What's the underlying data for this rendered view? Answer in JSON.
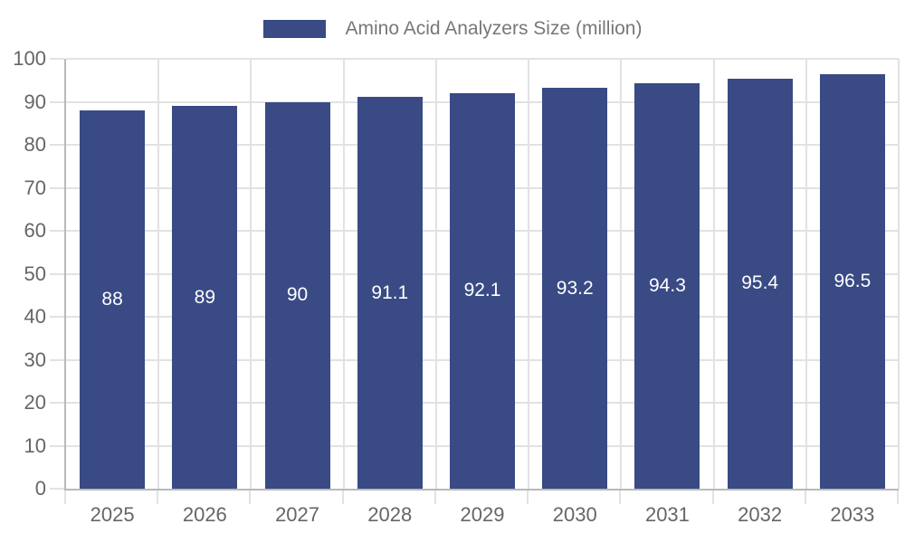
{
  "chart_data": {
    "type": "bar",
    "title": "Amino Acid Analyzers Size (million)",
    "legend_position": "top",
    "categories": [
      "2025",
      "2026",
      "2027",
      "2028",
      "2029",
      "2030",
      "2031",
      "2032",
      "2033"
    ],
    "values": [
      88,
      89,
      90,
      91.1,
      92.1,
      93.2,
      94.3,
      95.4,
      96.5
    ],
    "value_labels": [
      "88",
      "89",
      "90",
      "91.1",
      "92.1",
      "93.2",
      "94.3",
      "95.4",
      "96.5"
    ],
    "xlabel": "",
    "ylabel": "",
    "ylim": [
      0,
      100
    ],
    "yticks": [
      0,
      10,
      20,
      30,
      40,
      50,
      60,
      70,
      80,
      90,
      100
    ],
    "grid": true,
    "colors": {
      "bar": "#394A85",
      "grid": "#e2e2e2",
      "axis": "#b9b9b9",
      "tick_label": "#666666",
      "legend_text": "#75787b",
      "bar_label": "#ffffff"
    }
  }
}
